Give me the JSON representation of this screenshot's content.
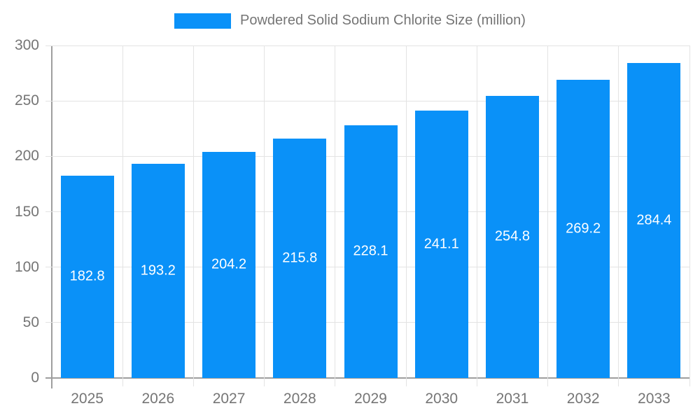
{
  "legend": {
    "label": "Powdered Solid Sodium Chlorite Size (million)"
  },
  "chart_data": {
    "type": "bar",
    "title": "",
    "legend_entries": [
      "Powdered Solid Sodium Chlorite Size (million)"
    ],
    "legend_position": "top",
    "categories": [
      "2025",
      "2026",
      "2027",
      "2028",
      "2029",
      "2030",
      "2031",
      "2032",
      "2033"
    ],
    "values": [
      182.8,
      193.2,
      204.2,
      215.8,
      228.1,
      241.1,
      254.8,
      269.2,
      284.4
    ],
    "value_labels": [
      "182.8",
      "193.2",
      "204.2",
      "215.8",
      "228.1",
      "241.1",
      "254.8",
      "269.2",
      "284.4"
    ],
    "xlabel": "",
    "ylabel": "",
    "ylim": [
      0,
      300
    ],
    "yticks": [
      0,
      50,
      100,
      150,
      200,
      250,
      300
    ],
    "grid": true,
    "colors": {
      "bar": "#0a91f8",
      "bar_value_text": "#ffffff",
      "axis_text": "#757575",
      "grid_line": "#e3e3e3",
      "axis_line": "#9e9e9e",
      "background": "#ffffff"
    }
  }
}
